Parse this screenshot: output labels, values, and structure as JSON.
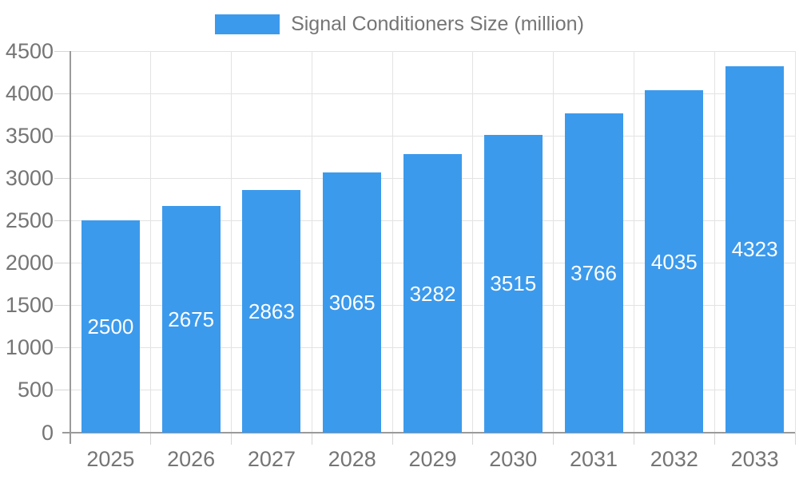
{
  "legend": {
    "label": "Signal Conditioners Size (million)"
  },
  "chart_data": {
    "type": "bar",
    "title": "Signal Conditioners Size (million)",
    "categories": [
      "2025",
      "2026",
      "2027",
      "2028",
      "2029",
      "2030",
      "2031",
      "2032",
      "2033"
    ],
    "values": [
      2500,
      2675,
      2863,
      3065,
      3282,
      3515,
      3766,
      4035,
      4323
    ],
    "series": [
      {
        "name": "Signal Conditioners Size (million)",
        "values": [
          2500,
          2675,
          2863,
          3065,
          3282,
          3515,
          3766,
          4035,
          4323
        ]
      }
    ],
    "xlabel": "",
    "ylabel": "",
    "ylim": [
      0,
      4500
    ],
    "yticks": [
      0,
      500,
      1000,
      1500,
      2000,
      2500,
      3000,
      3500,
      4000,
      4500
    ],
    "grid": true,
    "legend_position": "top",
    "value_labels_position": "inside-center"
  },
  "colors": {
    "bar": "#3c9aec",
    "bar_value_text": "#ffffff",
    "axis_text": "#757575",
    "legend_text": "#757575",
    "grid_line": "#e3e3e3",
    "tick_line": "#d6d6d6",
    "axis_line": "#9a9a9a",
    "background": "#ffffff"
  }
}
